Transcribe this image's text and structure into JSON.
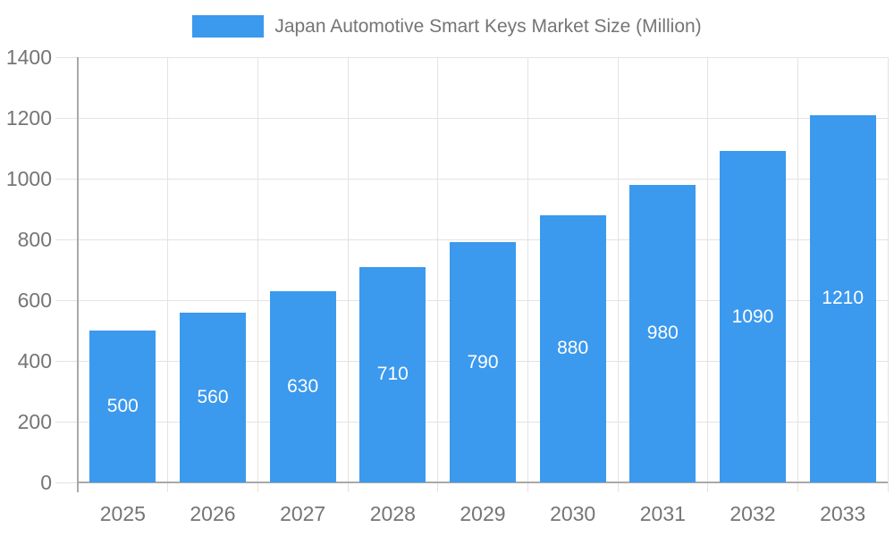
{
  "chart_data": {
    "type": "bar",
    "title": "Japan Automotive Smart Keys Market Size (Million)",
    "categories": [
      "2025",
      "2026",
      "2027",
      "2028",
      "2029",
      "2030",
      "2031",
      "2032",
      "2033"
    ],
    "values": [
      500,
      560,
      630,
      710,
      790,
      880,
      980,
      1090,
      1210
    ],
    "y_ticks": [
      0,
      200,
      400,
      600,
      800,
      1000,
      1200,
      1400
    ],
    "ylim": [
      0,
      1400
    ],
    "xlabel": "",
    "ylabel": "",
    "grid": "on",
    "legend_position": "top",
    "colors": {
      "bar": "#3B99EE",
      "bar_value_label": "#FFFFFF",
      "axis_text": "#757575",
      "legend_text": "#757575",
      "gridline": "#E3E3E3",
      "axis_line": "#A9A9A9",
      "background": "#FFFFFF"
    }
  }
}
